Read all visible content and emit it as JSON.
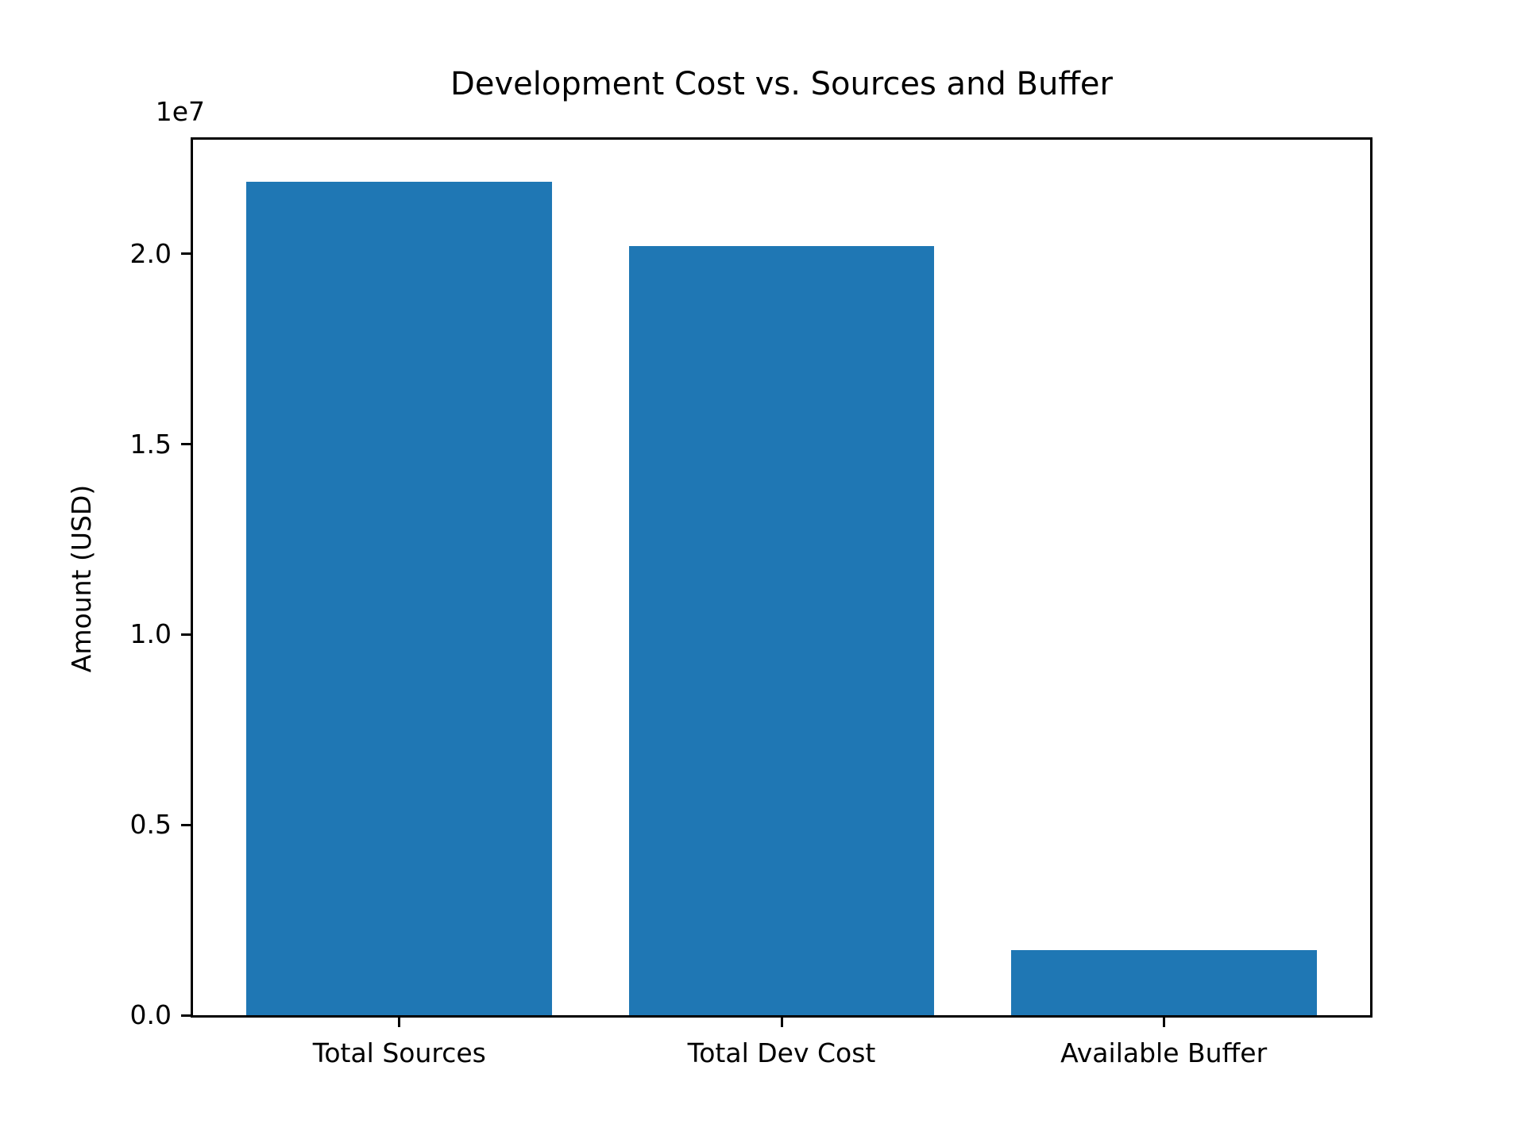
{
  "chart_data": {
    "type": "bar",
    "title": "Development Cost vs. Sources and Buffer",
    "xlabel": "",
    "ylabel": "Amount (USD)",
    "offset_text": "1e7",
    "categories": [
      "Total Sources",
      "Total Dev Cost",
      "Available Buffer"
    ],
    "values": [
      21900000,
      20200000,
      1700000
    ],
    "bar_color": "#1f77b4",
    "ylim": [
      0,
      23000000
    ],
    "ytick_values": [
      0,
      5000000,
      10000000,
      15000000,
      20000000
    ],
    "ytick_labels": [
      "0.0",
      "0.5",
      "1.0",
      "1.5",
      "2.0"
    ],
    "grid": false,
    "legend": "none",
    "background_color": "#ffffff",
    "axis_color": "#000000"
  }
}
